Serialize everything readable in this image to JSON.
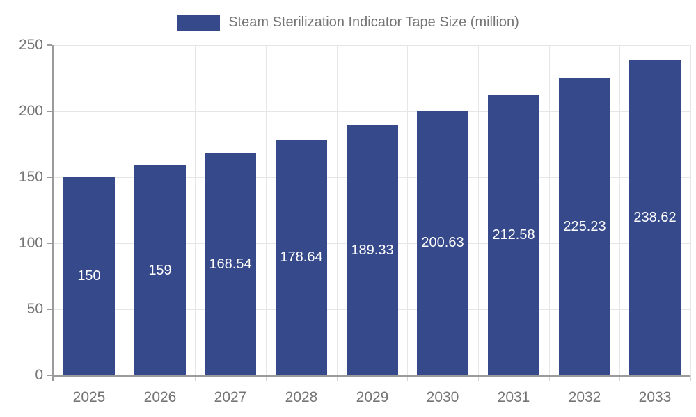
{
  "legend": {
    "label": "Steam Sterilization Indicator Tape Size (million)"
  },
  "colors": {
    "bar": "#36498B",
    "grid": "#E6E6E6",
    "axis": "#9B9B9B",
    "x_tick": "#D6D6D6",
    "tick_text": "#757575",
    "value_label": "#FFFFFF",
    "background": "#FFFFFF"
  },
  "chart_data": {
    "type": "bar",
    "title": "Steam Sterilization Indicator Tape Size (million)",
    "categories": [
      "2025",
      "2026",
      "2027",
      "2028",
      "2029",
      "2030",
      "2031",
      "2032",
      "2033"
    ],
    "values": [
      150,
      159,
      168.54,
      178.64,
      189.33,
      200.63,
      212.58,
      225.23,
      238.62
    ],
    "value_labels": [
      "150",
      "159",
      "168.54",
      "178.64",
      "189.33",
      "200.63",
      "212.58",
      "225.23",
      "238.62"
    ],
    "xlabel": "",
    "ylabel": "",
    "ylim": [
      0,
      250
    ],
    "y_ticks": [
      0,
      50,
      100,
      150,
      200,
      250
    ],
    "y_tick_labels": [
      "0",
      "50",
      "100",
      "150",
      "200",
      "250"
    ],
    "grid": true,
    "legend_position": "top",
    "value_label_position": "inside-center"
  }
}
